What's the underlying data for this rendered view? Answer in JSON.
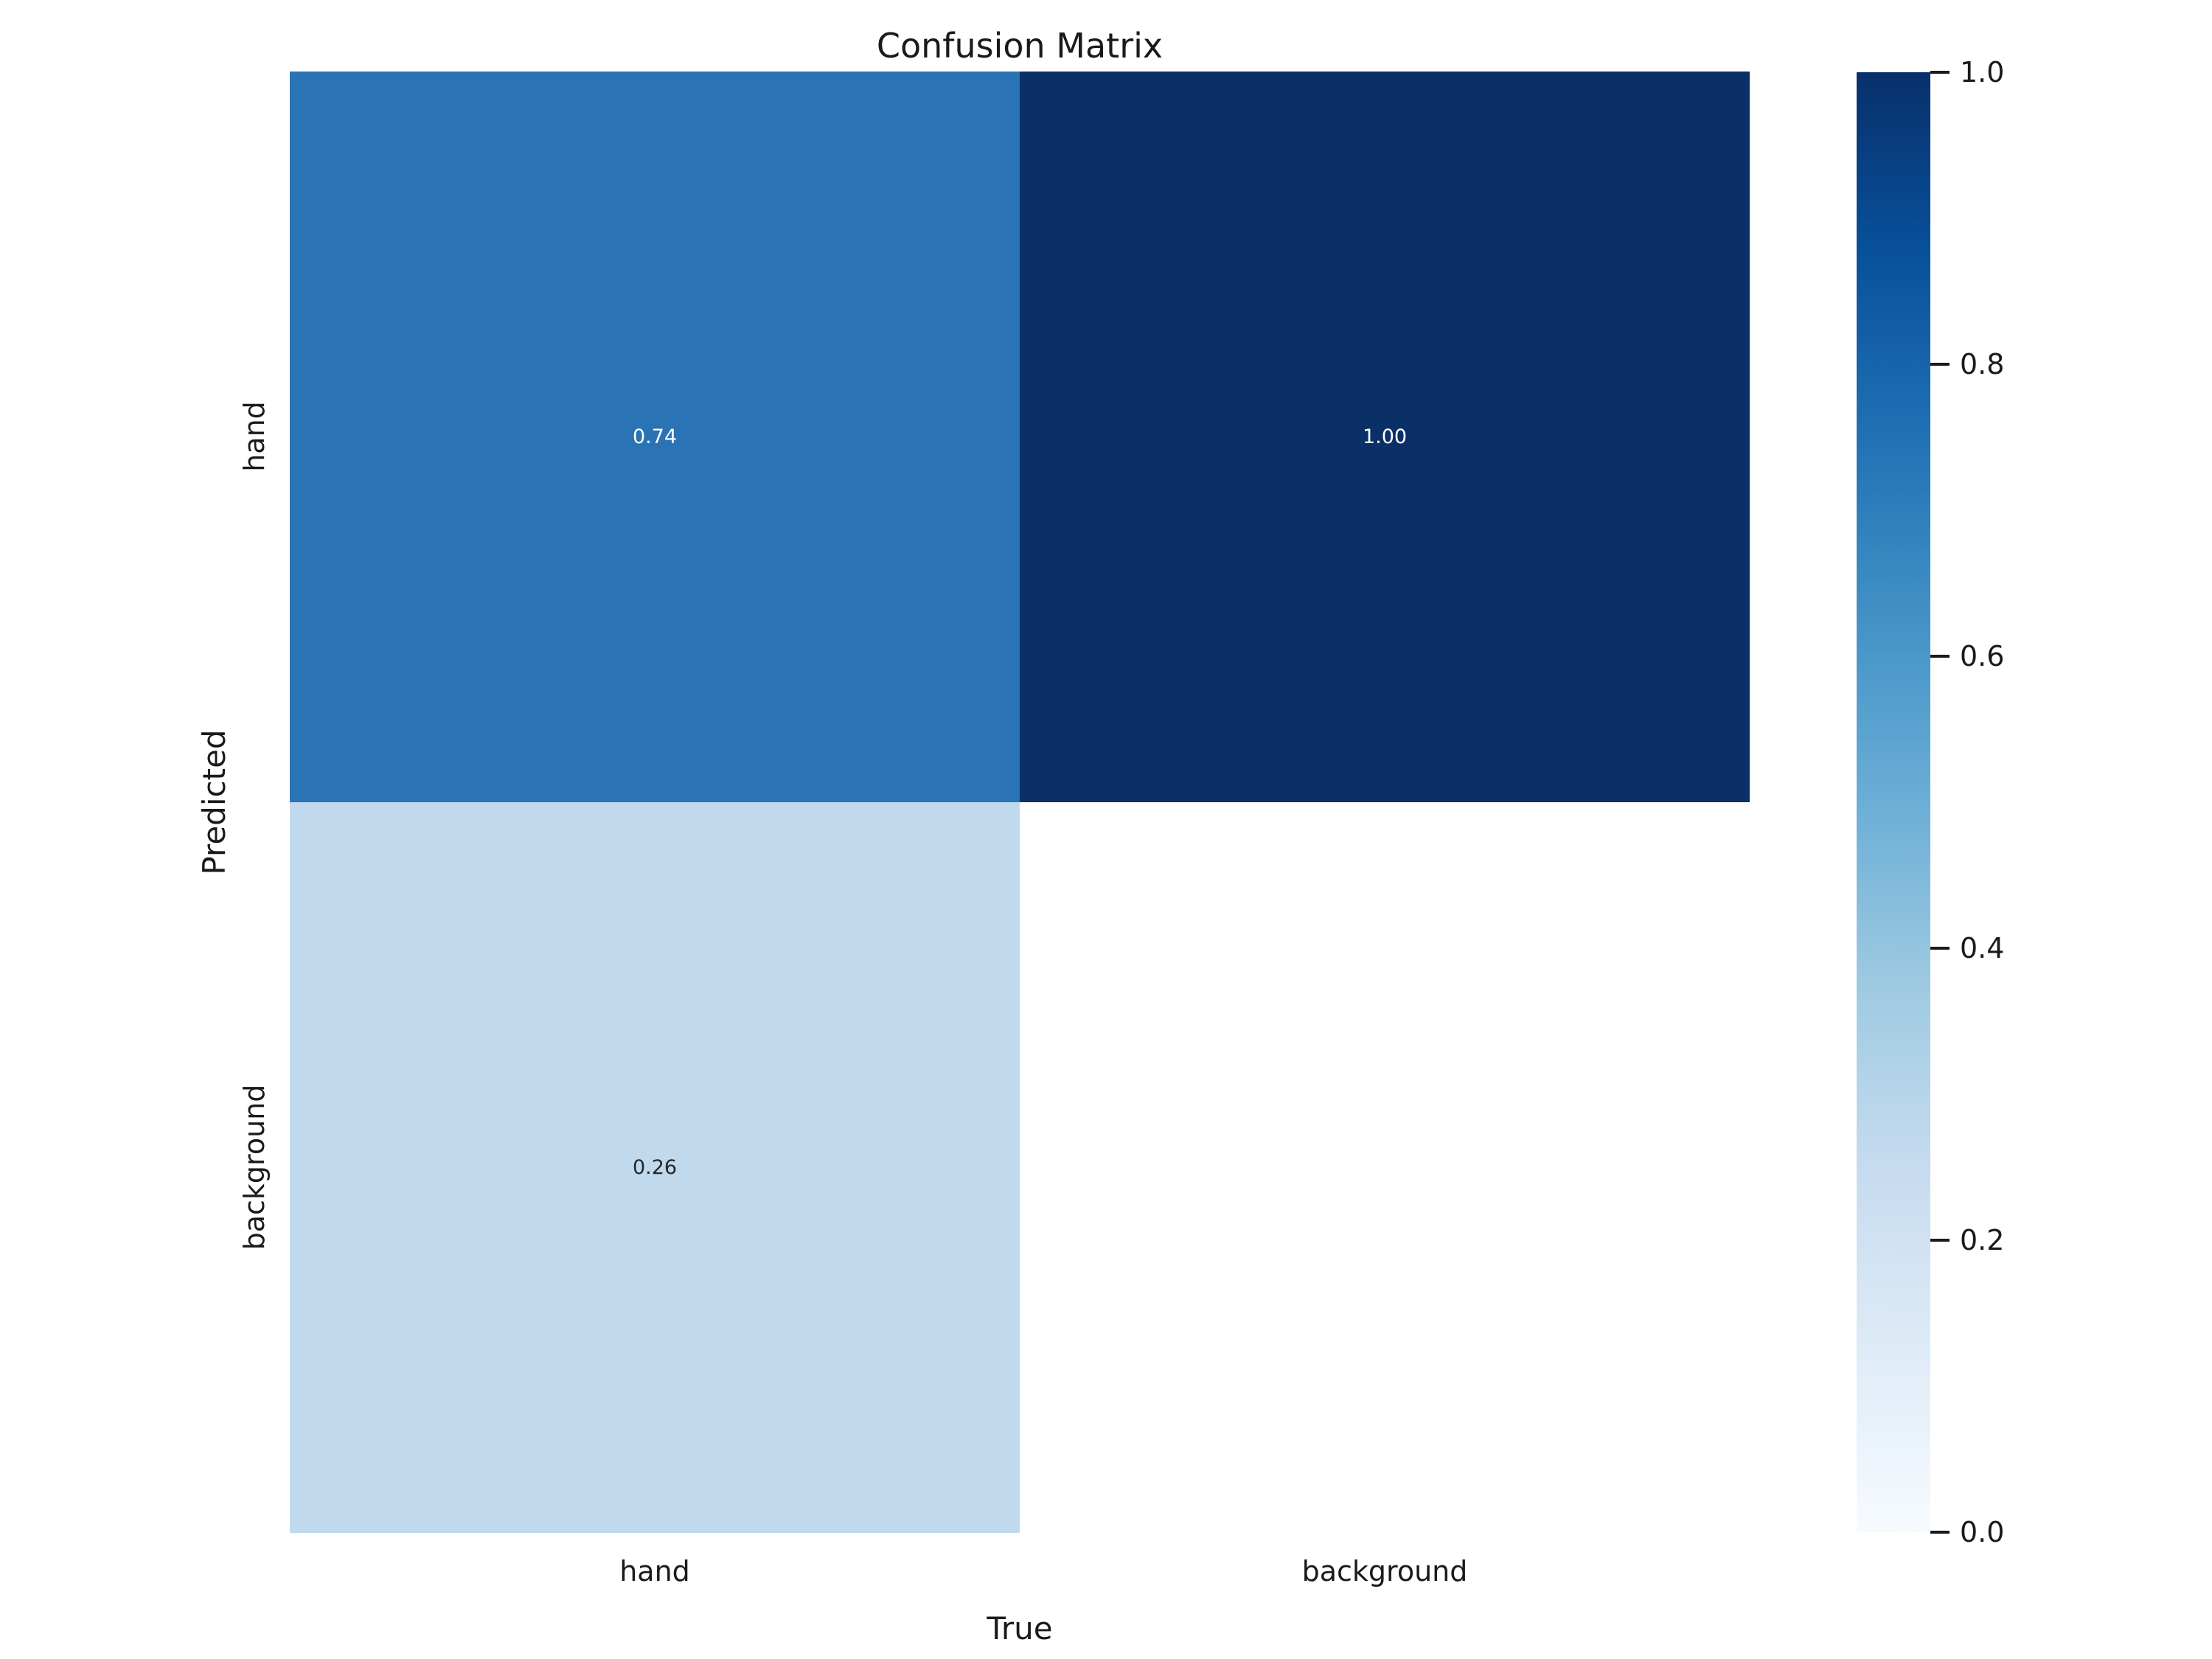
{
  "title": "Confusion Matrix",
  "chart_data": {
    "type": "heatmap",
    "title": "Confusion Matrix",
    "xlabel": "True",
    "ylabel": "Predicted",
    "x_categories": [
      "hand",
      "background"
    ],
    "y_categories": [
      "hand",
      "background"
    ],
    "matrix": [
      [
        0.74,
        1.0
      ],
      [
        0.26,
        null
      ]
    ],
    "value_range": [
      0.0,
      1.0
    ],
    "colormap": "Blues",
    "legend_position": "right-colorbar",
    "grid": false,
    "cells": [
      {
        "row": "hand",
        "col": "hand",
        "value": 0.74,
        "label": "0.74",
        "bg": "#2a73b4",
        "fg": "#ffffff"
      },
      {
        "row": "hand",
        "col": "background",
        "value": 1.0,
        "label": "1.00",
        "bg": "#0b3068",
        "fg": "#ffffff"
      },
      {
        "row": "background",
        "col": "hand",
        "value": 0.26,
        "label": "0.26",
        "bg": "#c1d9ec",
        "fg": "#262626"
      },
      {
        "row": "background",
        "col": "background",
        "value": null,
        "label": "",
        "bg": "#ffffff",
        "fg": "#262626"
      }
    ],
    "colormap_stops": [
      "#f7fbff",
      "#deebf7",
      "#c6dbef",
      "#9ecae1",
      "#6baed6",
      "#4292c6",
      "#2171b5",
      "#08519c",
      "#08306b"
    ],
    "colorbar_ticks": [
      "1.0",
      "0.8",
      "0.6",
      "0.4",
      "0.2",
      "0.0"
    ]
  },
  "colors": {
    "text": "#1a1a1a",
    "annot_light": "#ffffff",
    "annot_dark": "#262626",
    "figure_background": "#ffffff"
  }
}
